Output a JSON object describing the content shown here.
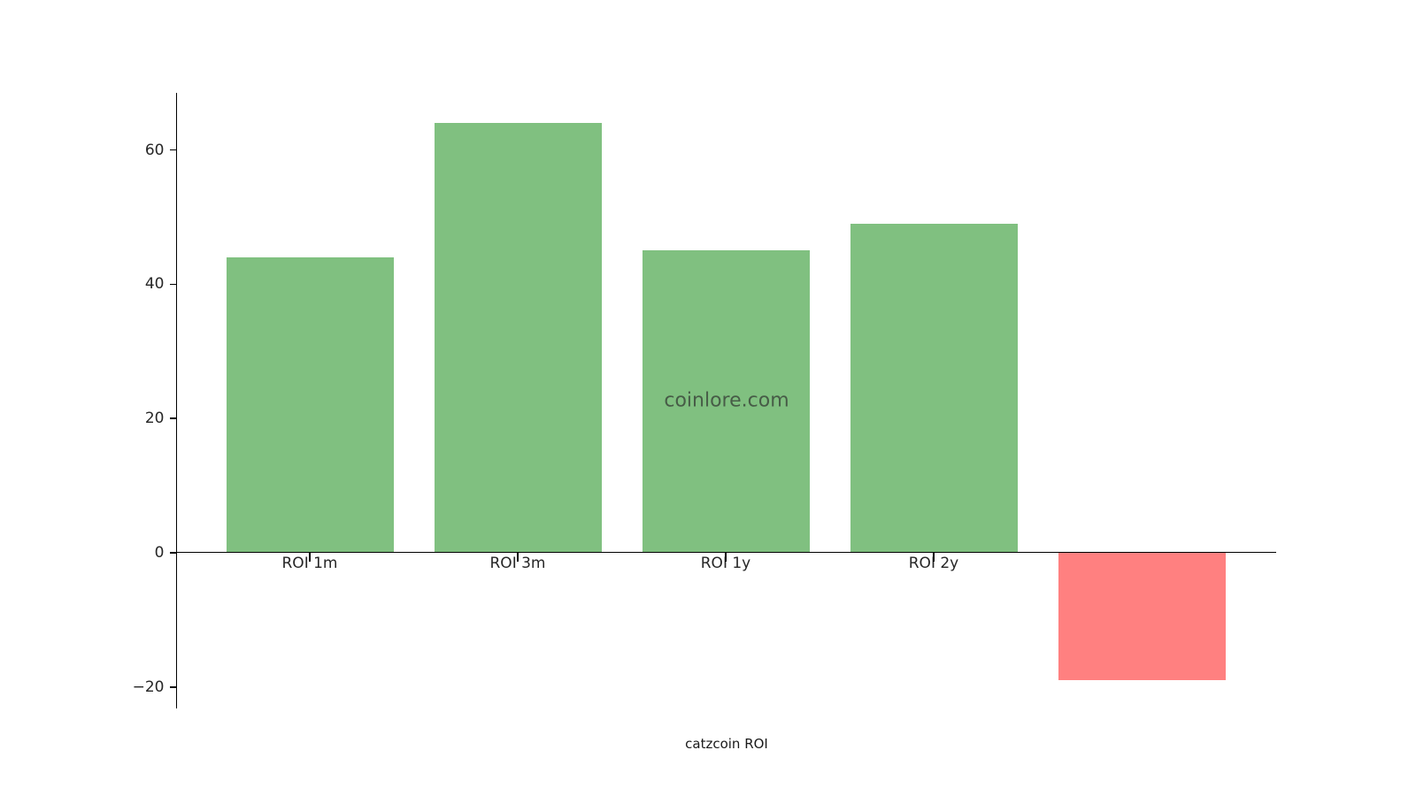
{
  "figure": {
    "watermark": "coinlore.com"
  },
  "chart_data": {
    "type": "bar",
    "categories": [
      "ROI 1m",
      "ROI 3m",
      "ROI 1y",
      "ROI 2y",
      ""
    ],
    "values": [
      44,
      64,
      45,
      49,
      -19
    ],
    "title": "",
    "xlabel": "catzcoin ROI",
    "ylabel": "",
    "ylim": [
      -23.3,
      68.5
    ],
    "yticks": [
      -20,
      0,
      20,
      40,
      60
    ],
    "ytick_labels": [
      "−20",
      "0",
      "20",
      "40",
      "60"
    ],
    "grid": false,
    "legend": null,
    "positive_color": "#80c080",
    "negative_color": "#ff8080",
    "axis_color": "#000000",
    "tick_label_color": "#262626",
    "watermark": "coinlore.com"
  }
}
